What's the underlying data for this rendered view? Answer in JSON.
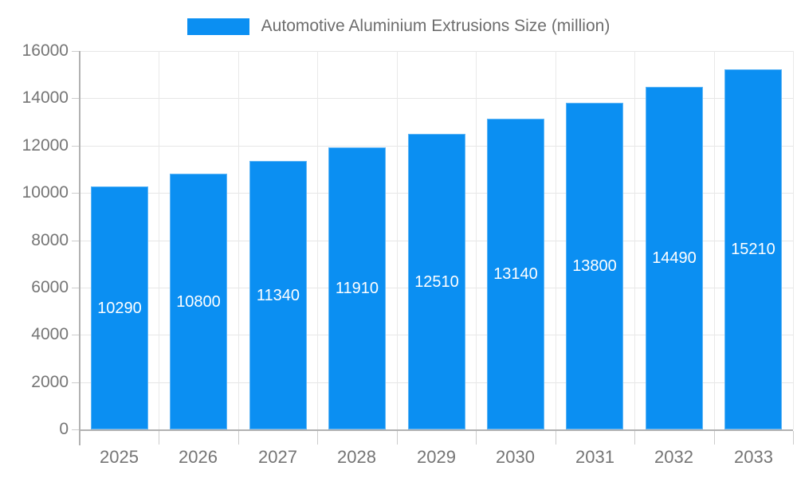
{
  "legend": {
    "label": "Automotive Aluminium Extrusions Size (million)",
    "swatch_color": "#0b8ff2"
  },
  "chart_data": {
    "type": "bar",
    "title": "Automotive Aluminium Extrusions Size (million)",
    "categories": [
      "2025",
      "2026",
      "2027",
      "2028",
      "2029",
      "2030",
      "2031",
      "2032",
      "2033"
    ],
    "values": [
      10290,
      10800,
      11340,
      11910,
      12510,
      13140,
      13800,
      14490,
      15210
    ],
    "value_labels": [
      "10290",
      "10800",
      "11340",
      "11910",
      "12510",
      "13140",
      "13800",
      "14490",
      "15210"
    ],
    "ylabel": "",
    "xlabel": "",
    "ylim": [
      0,
      16000
    ],
    "ytick_step": 2000,
    "ytick_labels": [
      "0",
      "2000",
      "4000",
      "6000",
      "8000",
      "10000",
      "12000",
      "14000",
      "16000"
    ],
    "grid": true,
    "legend_position": "top",
    "bar_color": "#0b8ff2",
    "value_label_color": "#ffffff",
    "axis_text_color": "#757575",
    "axis_line_color": "#b2b2b2",
    "gridline_color": "#e6e6e6"
  }
}
